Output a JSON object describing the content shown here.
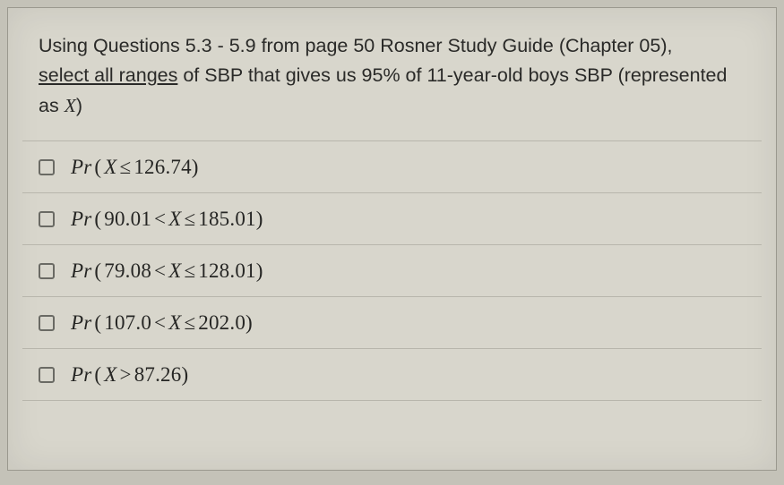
{
  "card": {
    "background_color": "#d8d6cc",
    "border_color": "#9a988e"
  },
  "question": {
    "line1_pre": "Using Questions 5.3 - 5.9 from page 50 Rosner Study Guide (Chapter 05),",
    "line2_underline": "select all ranges",
    "line2_rest": " of SBP that gives us 95% of 11-year-old boys SBP (represented",
    "line3_pre": "as ",
    "line3_var": "X",
    "line3_post": ")",
    "font_size": 21.5,
    "text_color": "#2a2a28"
  },
  "options": {
    "checkbox_border": "#6a6a64",
    "row_border": "#b8b6ac",
    "expr_font_size": 23,
    "expr_color": "#262624",
    "items": [
      {
        "pr": "Pr",
        "open": "(",
        "var": "X",
        "rel1": "≤",
        "v1": "126.74",
        "close": ")",
        "two_sided": false
      },
      {
        "pr": "Pr",
        "open": "(",
        "v0": "90.01",
        "rel0": "<",
        "var": "X",
        "rel1": "≤",
        "v1": "185.01",
        "close": ")",
        "two_sided": true
      },
      {
        "pr": "Pr",
        "open": "(",
        "v0": "79.08",
        "rel0": "<",
        "var": "X",
        "rel1": "≤",
        "v1": "128.01",
        "close": ")",
        "two_sided": true
      },
      {
        "pr": "Pr",
        "open": "(",
        "v0": "107.0",
        "rel0": "<",
        "var": "X",
        "rel1": "≤",
        "v1": "202.0",
        "close": ")",
        "two_sided": true
      },
      {
        "pr": "Pr",
        "open": "(",
        "var": "X",
        "rel1": ">",
        "v1": "87.26",
        "close": ")",
        "two_sided": false
      }
    ]
  }
}
